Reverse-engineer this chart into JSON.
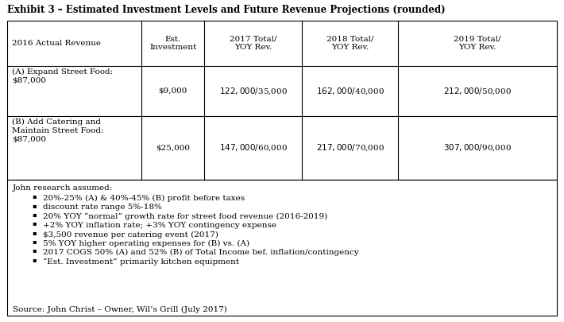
{
  "title": "Exhibit 3 – Estimated Investment Levels and Future Revenue Projections (rounded)",
  "font_family": "serif",
  "bg_color": "#ffffff",
  "lc": "#000000",
  "header_row": [
    "2016 Actual Revenue",
    "Est.\nInvestment",
    "2017 Total/\nYOY Rev.",
    "2018 Total/\nYOY Rev.",
    "2019 Total/\nYOY Rev."
  ],
  "row_a_label": "(A) Expand Street Food:\n$87,000",
  "row_a_values": [
    "$9,000",
    "$122,000/$35,000",
    "$162,000/$40,000",
    "$212,000/$50,000"
  ],
  "row_b_label": "(B) Add Catering and\nMaintain Street Food:\n$87,000",
  "row_b_values": [
    "$25,000",
    "$147,000/$60,000",
    "$217,000/$70,000",
    "$307,000/$90,000"
  ],
  "notes_title": "John research assumed:",
  "bullets": [
    "20%-25% (A) & 40%-45% (B) profit before taxes",
    "discount rate range 5%-18%",
    "20% YOY “normal” growth rate for street food revenue (2016-2019)",
    "+2% YOY inflation rate; +3% YOY contingency expense",
    "$3,500 revenue per catering event (2017)",
    "5% YOY higher operating expenses for (B) vs. (A)",
    "2017 COGS 50% (A) and 52% (B) of Total Income bef. inflation/contingency",
    "“Est. Investment” primarily kitchen equipment"
  ],
  "source": "Source: John Christ – Owner, Wil’s Grill (July 2017)",
  "title_fs": 8.5,
  "cell_fs": 7.5,
  "notes_fs": 7.5
}
